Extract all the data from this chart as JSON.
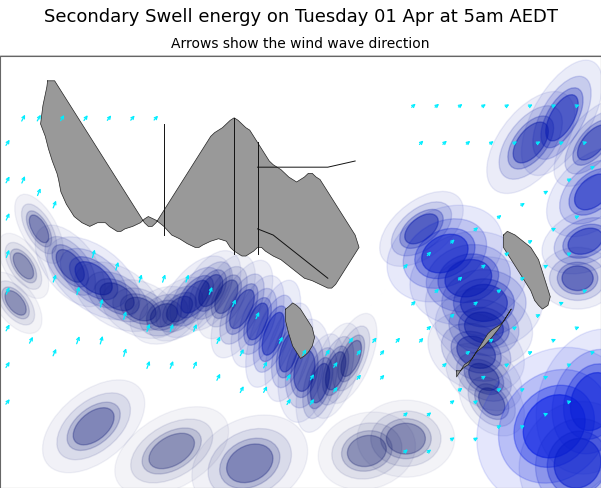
{
  "title": "Secondary Swell energy on Tuesday 01 Apr at 5am AEDT",
  "subtitle": "Arrows show the wind wave direction",
  "title_fontsize": 13,
  "subtitle_fontsize": 10,
  "fig_width": 6.01,
  "fig_height": 4.88,
  "dpi": 100,
  "xlim": [
    108,
    185
  ],
  "ylim": [
    -55,
    -20
  ],
  "land_color": "#999999",
  "border_color": "#111111",
  "map_bg": "#000000",
  "header_bg": "#ffffff",
  "arrow_color": "#00eeff",
  "swell_blobs": [
    [
      117,
      -37,
      4,
      2,
      -30,
      0.55
    ],
    [
      120,
      -38,
      5,
      2.2,
      -20,
      0.65
    ],
    [
      123,
      -39.5,
      4.5,
      2,
      -15,
      0.55
    ],
    [
      126,
      -40.5,
      4,
      1.8,
      -10,
      0.5
    ],
    [
      129,
      -41,
      3.5,
      1.8,
      10,
      0.5
    ],
    [
      131,
      -40.5,
      3.5,
      1.8,
      20,
      0.5
    ],
    [
      133,
      -39.5,
      4,
      2,
      30,
      0.6
    ],
    [
      135,
      -39,
      3.5,
      2,
      35,
      0.55
    ],
    [
      137,
      -39.5,
      3.5,
      2,
      40,
      0.5
    ],
    [
      139,
      -40.5,
      4,
      2,
      45,
      0.6
    ],
    [
      141,
      -41.5,
      3.5,
      2,
      50,
      0.65
    ],
    [
      143,
      -42.5,
      4,
      2,
      55,
      0.7
    ],
    [
      145,
      -44,
      3.5,
      2,
      60,
      0.65
    ],
    [
      147,
      -45.5,
      3.5,
      2.5,
      65,
      0.6
    ],
    [
      149,
      -46.5,
      3.5,
      2,
      60,
      0.55
    ],
    [
      151,
      -45.5,
      3.5,
      2,
      55,
      0.5
    ],
    [
      153,
      -44.5,
      3.5,
      1.8,
      50,
      0.45
    ],
    [
      113,
      -34,
      3,
      1.5,
      -40,
      0.45
    ],
    [
      111,
      -37,
      3,
      1.5,
      -35,
      0.4
    ],
    [
      110,
      -40,
      3,
      1.5,
      -30,
      0.4
    ],
    [
      162,
      -34,
      4.5,
      2,
      20,
      0.65
    ],
    [
      165,
      -36,
      6,
      3,
      10,
      0.8
    ],
    [
      168,
      -38,
      6,
      3,
      5,
      0.75
    ],
    [
      170,
      -40,
      6,
      3,
      0,
      0.7
    ],
    [
      170,
      -42,
      5,
      2.5,
      -5,
      0.65
    ],
    [
      169,
      -44,
      5,
      2.5,
      -10,
      0.6
    ],
    [
      170,
      -46,
      4,
      2,
      -15,
      0.55
    ],
    [
      171,
      -48,
      3.5,
      2,
      -20,
      0.5
    ],
    [
      176,
      -27,
      5,
      2.5,
      30,
      0.65
    ],
    [
      180,
      -25,
      5,
      2.5,
      40,
      0.7
    ],
    [
      184,
      -27,
      4.5,
      2,
      30,
      0.65
    ],
    [
      184,
      -31,
      5,
      2.5,
      20,
      0.75
    ],
    [
      183,
      -35,
      4.5,
      2,
      10,
      0.7
    ],
    [
      182,
      -38,
      4,
      2,
      0,
      0.6
    ],
    [
      179,
      -50,
      8,
      5,
      10,
      0.9
    ],
    [
      184,
      -48,
      6,
      4.5,
      20,
      0.85
    ],
    [
      182,
      -53,
      6,
      4,
      5,
      0.8
    ],
    [
      120,
      -50,
      5.5,
      2.5,
      20,
      0.45
    ],
    [
      130,
      -52,
      6,
      2.5,
      15,
      0.4
    ],
    [
      140,
      -53,
      6,
      3,
      10,
      0.45
    ],
    [
      155,
      -52,
      5,
      2.5,
      5,
      0.4
    ],
    [
      160,
      -51,
      5,
      2.5,
      0,
      0.4
    ]
  ],
  "arrows": [
    [
      109,
      -27,
      45
    ],
    [
      109,
      -30,
      50
    ],
    [
      109,
      -33,
      55
    ],
    [
      109,
      -36,
      60
    ],
    [
      109,
      -39,
      55
    ],
    [
      109,
      -42,
      50
    ],
    [
      109,
      -45,
      45
    ],
    [
      109,
      -48,
      40
    ],
    [
      112,
      -43,
      50
    ],
    [
      115,
      -44,
      55
    ],
    [
      118,
      -43,
      60
    ],
    [
      121,
      -43,
      65
    ],
    [
      124,
      -44,
      65
    ],
    [
      127,
      -45,
      60
    ],
    [
      130,
      -45,
      58
    ],
    [
      133,
      -45,
      55
    ],
    [
      136,
      -46,
      52
    ],
    [
      139,
      -47,
      50
    ],
    [
      142,
      -47,
      48
    ],
    [
      145,
      -48,
      45
    ],
    [
      148,
      -48,
      43
    ],
    [
      151,
      -47,
      40
    ],
    [
      154,
      -46,
      38
    ],
    [
      157,
      -46,
      35
    ],
    [
      115,
      -38,
      60
    ],
    [
      118,
      -39,
      65
    ],
    [
      121,
      -40,
      68
    ],
    [
      124,
      -41,
      65
    ],
    [
      127,
      -42,
      62
    ],
    [
      130,
      -42,
      60
    ],
    [
      133,
      -42,
      58
    ],
    [
      136,
      -43,
      55
    ],
    [
      139,
      -44,
      52
    ],
    [
      142,
      -45,
      50
    ],
    [
      145,
      -46,
      48
    ],
    [
      148,
      -46,
      45
    ],
    [
      151,
      -45,
      42
    ],
    [
      154,
      -44,
      40
    ],
    [
      157,
      -44,
      38
    ],
    [
      120,
      -36,
      65
    ],
    [
      123,
      -37,
      65
    ],
    [
      126,
      -38,
      63
    ],
    [
      129,
      -38,
      62
    ],
    [
      132,
      -38,
      60
    ],
    [
      135,
      -39,
      58
    ],
    [
      138,
      -40,
      55
    ],
    [
      141,
      -41,
      53
    ],
    [
      144,
      -43,
      50
    ],
    [
      147,
      -44,
      48
    ],
    [
      150,
      -44,
      45
    ],
    [
      153,
      -43,
      42
    ],
    [
      156,
      -43,
      40
    ],
    [
      159,
      -43,
      38
    ],
    [
      162,
      -43,
      35
    ],
    [
      160,
      -37,
      35
    ],
    [
      163,
      -36,
      33
    ],
    [
      166,
      -35,
      30
    ],
    [
      169,
      -34,
      28
    ],
    [
      172,
      -33,
      25
    ],
    [
      175,
      -32,
      22
    ],
    [
      178,
      -31,
      20
    ],
    [
      181,
      -30,
      18
    ],
    [
      184,
      -29,
      16
    ],
    [
      161,
      -40,
      33
    ],
    [
      164,
      -39,
      30
    ],
    [
      167,
      -38,
      28
    ],
    [
      170,
      -37,
      25
    ],
    [
      173,
      -36,
      22
    ],
    [
      176,
      -35,
      20
    ],
    [
      179,
      -34,
      18
    ],
    [
      182,
      -33,
      16
    ],
    [
      163,
      -42,
      30
    ],
    [
      166,
      -41,
      28
    ],
    [
      169,
      -40,
      25
    ],
    [
      172,
      -39,
      22
    ],
    [
      175,
      -38,
      20
    ],
    [
      178,
      -37,
      18
    ],
    [
      181,
      -36,
      16
    ],
    [
      165,
      -45,
      28
    ],
    [
      168,
      -44,
      25
    ],
    [
      171,
      -43,
      22
    ],
    [
      174,
      -42,
      20
    ],
    [
      177,
      -41,
      18
    ],
    [
      180,
      -40,
      16
    ],
    [
      183,
      -39,
      14
    ],
    [
      167,
      -47,
      25
    ],
    [
      170,
      -46,
      22
    ],
    [
      173,
      -45,
      20
    ],
    [
      176,
      -44,
      18
    ],
    [
      179,
      -43,
      16
    ],
    [
      182,
      -42,
      14
    ],
    [
      160,
      -49,
      30
    ],
    [
      163,
      -49,
      28
    ],
    [
      166,
      -48,
      25
    ],
    [
      169,
      -48,
      22
    ],
    [
      172,
      -47,
      20
    ],
    [
      175,
      -47,
      18
    ],
    [
      178,
      -46,
      16
    ],
    [
      181,
      -45,
      14
    ],
    [
      184,
      -44,
      12
    ],
    [
      160,
      -52,
      28
    ],
    [
      163,
      -52,
      25
    ],
    [
      166,
      -51,
      22
    ],
    [
      169,
      -51,
      20
    ],
    [
      172,
      -50,
      18
    ],
    [
      175,
      -50,
      16
    ],
    [
      178,
      -49,
      14
    ],
    [
      181,
      -48,
      12
    ],
    [
      161,
      -24,
      30
    ],
    [
      164,
      -24,
      28
    ],
    [
      167,
      -24,
      25
    ],
    [
      170,
      -24,
      22
    ],
    [
      173,
      -24,
      20
    ],
    [
      176,
      -24,
      18
    ],
    [
      179,
      -24,
      16
    ],
    [
      182,
      -24,
      14
    ],
    [
      162,
      -27,
      32
    ],
    [
      165,
      -27,
      30
    ],
    [
      168,
      -27,
      27
    ],
    [
      171,
      -27,
      24
    ],
    [
      174,
      -27,
      21
    ],
    [
      177,
      -27,
      18
    ],
    [
      180,
      -27,
      15
    ],
    [
      183,
      -27,
      12
    ],
    [
      111,
      -30,
      55
    ],
    [
      113,
      -31,
      57
    ],
    [
      115,
      -32,
      58
    ],
    [
      111,
      -25,
      50
    ],
    [
      113,
      -25,
      48
    ],
    [
      116,
      -25,
      45
    ],
    [
      119,
      -25,
      42
    ],
    [
      122,
      -25,
      40
    ],
    [
      125,
      -25,
      38
    ],
    [
      128,
      -25,
      35
    ]
  ]
}
